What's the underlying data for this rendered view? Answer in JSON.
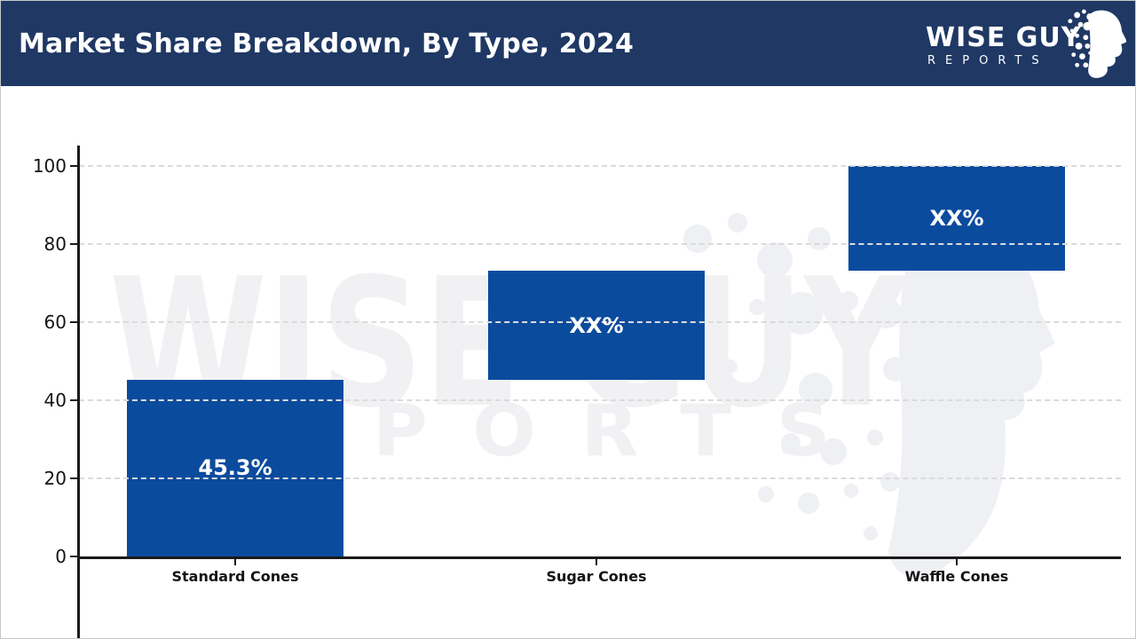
{
  "header": {
    "title": "Market Share Breakdown, By Type, 2024",
    "logo": {
      "line1": "WISE GUY",
      "line2": "REPORTS"
    }
  },
  "watermark": {
    "line1": "WISE GUY",
    "line2": "REPORTS"
  },
  "colors": {
    "header_bg": "#1f3864",
    "bar": "#0b4b9e",
    "bar_label": "#ffffff",
    "grid": "#dbdbdb",
    "axis": "#1a1a1a",
    "tick_label": "#141414",
    "watermark": "#f1f1f4"
  },
  "chart_data": {
    "type": "bar",
    "subtype": "waterfall",
    "title": "Market Share Breakdown, By Type, 2024",
    "categories": [
      "Standard Cones",
      "Sugar Cones",
      "Waffle Cones"
    ],
    "series": [
      {
        "name": "Market Share",
        "segments": [
          {
            "category": "Standard Cones",
            "base": 0,
            "top": 45.3,
            "label": "45.3%"
          },
          {
            "category": "Sugar Cones",
            "base": 45.3,
            "top": 73.1,
            "label": "XX%"
          },
          {
            "category": "Waffle Cones",
            "base": 73.1,
            "top": 100,
            "label": "XX%"
          }
        ]
      }
    ],
    "xlabel": "",
    "ylabel": "",
    "ylim": [
      0,
      100
    ],
    "yticks": [
      0,
      20,
      40,
      60,
      80,
      100
    ],
    "grid": "horizontal-dashed",
    "legend": false
  }
}
